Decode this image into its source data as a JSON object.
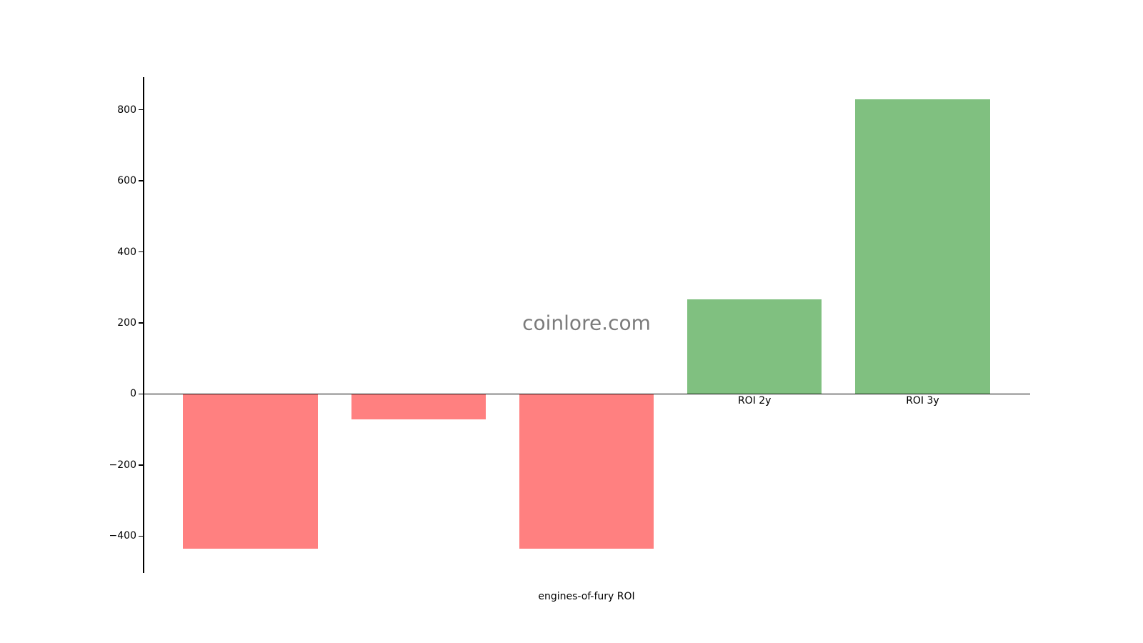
{
  "watermark": {
    "text": "coinlore.com",
    "color": "#7b7b7b"
  },
  "chart_data": {
    "type": "bar",
    "title": "",
    "xlabel": "engines-of-fury ROI",
    "ylabel": "",
    "categories": [
      "",
      "",
      "",
      "ROI 2y",
      "ROI 3y"
    ],
    "values": [
      -436,
      -72,
      -436,
      267,
      830
    ],
    "negative_color": "#ff8080",
    "positive_color": "#80c080",
    "axis_color": "#000000",
    "text_color": "#000000",
    "background_color": "#ffffff",
    "y_ticks": [
      {
        "value": -400,
        "label": "−400"
      },
      {
        "value": -200,
        "label": "−200"
      },
      {
        "value": 0,
        "label": "0"
      },
      {
        "value": 200,
        "label": "200"
      },
      {
        "value": 400,
        "label": "400"
      },
      {
        "value": 600,
        "label": "600"
      },
      {
        "value": 800,
        "label": "800"
      }
    ],
    "ylim": [
      -504,
      892
    ],
    "xlim": [
      -0.64,
      4.64
    ],
    "bar_width": 0.8,
    "grid": false,
    "legend": "none"
  }
}
